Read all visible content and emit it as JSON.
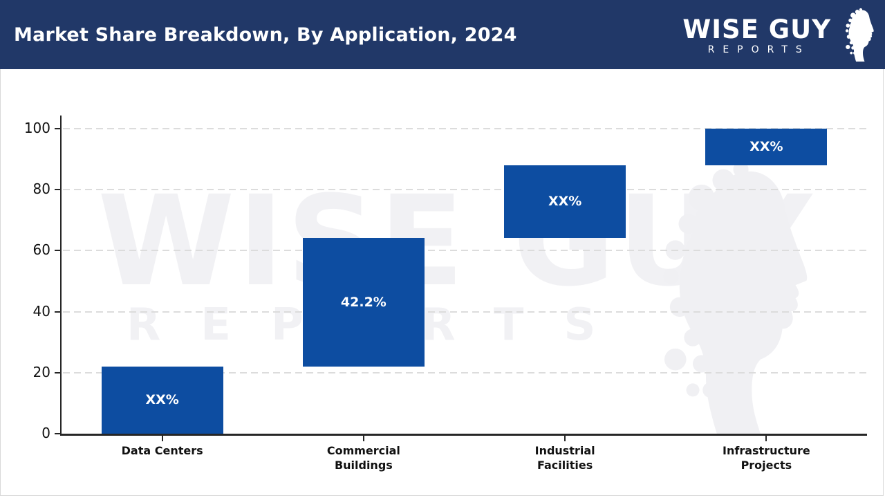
{
  "header": {
    "title": "Market Share Breakdown, By Application, 2024",
    "brand_line1": "WISE GUY",
    "brand_line2": "REPORTS"
  },
  "watermark": {
    "line1": "WISE GUY",
    "line2": "REPORTS"
  },
  "colors": {
    "header_bg": "#213868",
    "bar": "#0d4da1",
    "grid": "#dcdcdc",
    "axis": "#262626",
    "canvas_border": "#d9d9d9",
    "watermark": "#f1f1f4",
    "bar_label": "#ffffff"
  },
  "chart_data": {
    "type": "bar",
    "subtype": "waterfall",
    "title": "Market Share Breakdown, By Application, 2024",
    "categories": [
      "Data Centers",
      "Commercial Buildings",
      "Industrial Facilities",
      "Infrastructure Projects"
    ],
    "series": [
      {
        "name": "Market share (%)",
        "segments": [
          {
            "category": "Data Centers",
            "start": 0,
            "end": 22,
            "label": "XX%"
          },
          {
            "category": "Commercial Buildings",
            "start": 22,
            "end": 64.2,
            "label": "42.2%"
          },
          {
            "category": "Industrial Facilities",
            "start": 64.2,
            "end": 88,
            "label": "XX%"
          },
          {
            "category": "Infrastructure Projects",
            "start": 88,
            "end": 100,
            "label": "XX%"
          }
        ]
      }
    ],
    "ylim": [
      0,
      100
    ],
    "yticks": [
      0,
      20,
      40,
      60,
      80,
      100
    ],
    "grid": "horizontal-dashed",
    "legend": "none",
    "bar_color": "#0d4da1"
  }
}
